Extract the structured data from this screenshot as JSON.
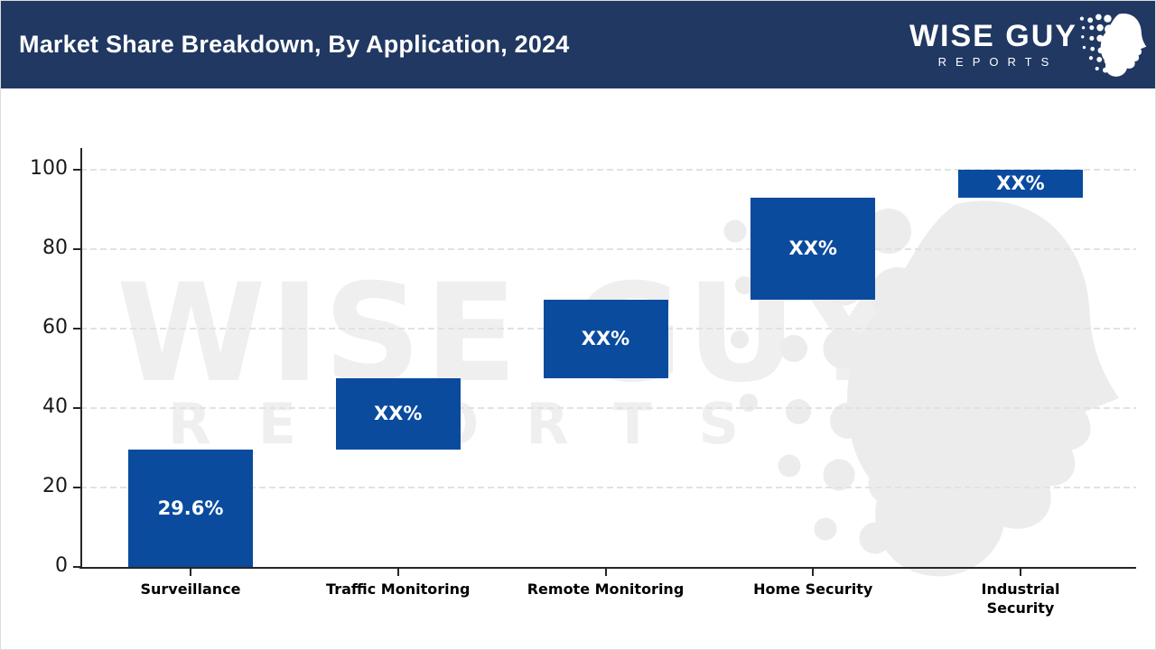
{
  "header": {
    "title": "Market Share Breakdown, By Application, 2024",
    "logo": {
      "line1": "WISE GUY",
      "line2": "REPORTS"
    }
  },
  "watermark": {
    "line1": "WISE GUY",
    "line2": "REPORTS"
  },
  "colors": {
    "header_bg": "#203862",
    "bar": "#0A4B9E",
    "grid": "#E2E2E2",
    "axis": "#262626",
    "text": "#1A1A1A",
    "watermark": "#EFEFEF",
    "watermark_face": "#ECECEC"
  },
  "chart_data": {
    "type": "bar",
    "subtype": "waterfall",
    "title": "Market Share Breakdown, By Application, 2024",
    "categories": [
      "Surveillance",
      "Traffic Monitoring",
      "Remote Monitoring",
      "Home Security",
      "Industrial Security"
    ],
    "xlabels_display": [
      "Surveillance",
      "Traffic Monitoring",
      "Remote Monitoring",
      "Home Security",
      "Industrial\nSecurity"
    ],
    "segments": [
      {
        "category": "Surveillance",
        "start": 0,
        "end": 29.6,
        "label": "29.6%"
      },
      {
        "category": "Traffic Monitoring",
        "start": 29.6,
        "end": 47.5,
        "label": "XX%"
      },
      {
        "category": "Remote Monitoring",
        "start": 47.5,
        "end": 67.3,
        "label": "XX%"
      },
      {
        "category": "Home Security",
        "start": 67.3,
        "end": 93.0,
        "label": "XX%"
      },
      {
        "category": "Industrial Security",
        "start": 93.0,
        "end": 100.0,
        "label": "XX%"
      }
    ],
    "yticks": [
      0,
      20,
      40,
      60,
      80,
      100
    ],
    "ylim": [
      0,
      105
    ],
    "xlabel": "",
    "ylabel": "",
    "grid": "horizontal dashed",
    "legend": "none",
    "bar_color": "#0A4B9E",
    "bar_label_color": "#FFFFFF"
  }
}
